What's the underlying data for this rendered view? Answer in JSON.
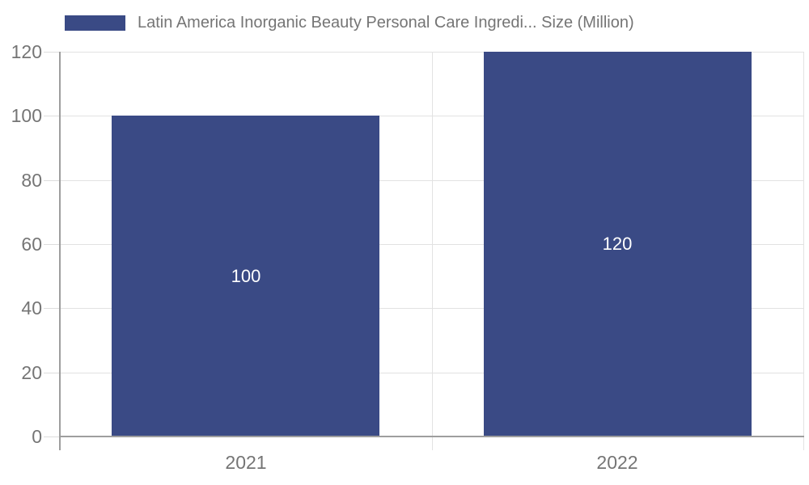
{
  "legend": {
    "label": "Latin America Inorganic Beauty Personal Care Ingredi... Size (Million)",
    "swatch_color": "#3A4A85"
  },
  "chart_data": {
    "type": "bar",
    "title": "Latin America Inorganic Beauty Personal Care Ingredi... Size (Million)",
    "series": [
      {
        "name": "Latin America Inorganic Beauty Personal Care Ingredi... Size (Million)",
        "values": [
          100,
          120
        ]
      }
    ],
    "categories": [
      "2021",
      "2022"
    ],
    "data_labels": [
      "100",
      "120"
    ],
    "xlabel": "",
    "ylabel": "",
    "ylim": [
      0,
      120
    ],
    "yticks": [
      0,
      20,
      40,
      60,
      80,
      100,
      120
    ],
    "grid": true,
    "legend_position": "top-left",
    "bar_color": "#3A4A85",
    "data_label_color": "#ffffff",
    "axis_text_color": "#757575",
    "gridline_color": "#e2e2e2",
    "axis_line_color": "#9e9e9e"
  }
}
